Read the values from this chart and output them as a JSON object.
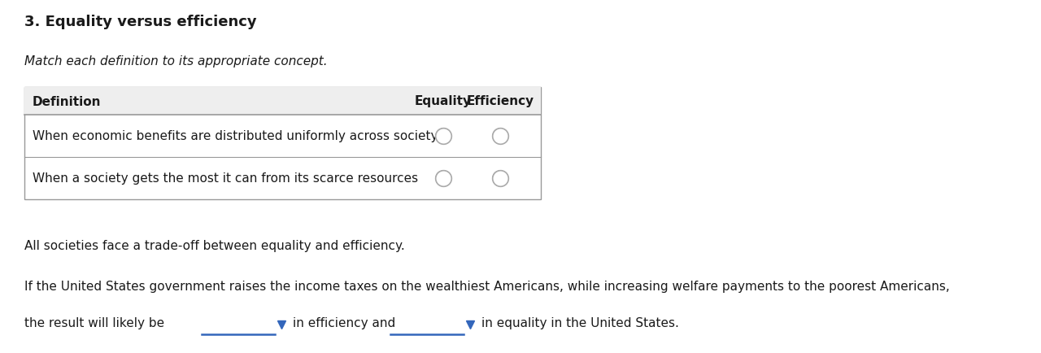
{
  "title": "3. Equality versus efficiency",
  "subtitle": "Match each definition to its appropriate concept.",
  "table_header": [
    "Definition",
    "Equality",
    "Efficiency"
  ],
  "table_rows": [
    "When economic benefits are distributed uniformly across society",
    "When a society gets the most it can from its scarce resources"
  ],
  "statement": "All societies face a trade-off between equality and efficiency.",
  "last_line1": "If the United States government raises the income taxes on the wealthiest Americans, while increasing welfare payments to the poorest Americans,",
  "last_line2": "the result will likely be",
  "last_line2_mid": "in efficiency and",
  "last_line2_end": "in equality in the United States.",
  "bg_color": "#ffffff",
  "text_color": "#1a1a1a",
  "table_border_color": "#999999",
  "radio_color": "#aaaaaa",
  "dropdown_color": "#3366bb",
  "underline_color": "#3366bb",
  "title_fontsize": 13,
  "body_fontsize": 11,
  "italic_fontsize": 11
}
